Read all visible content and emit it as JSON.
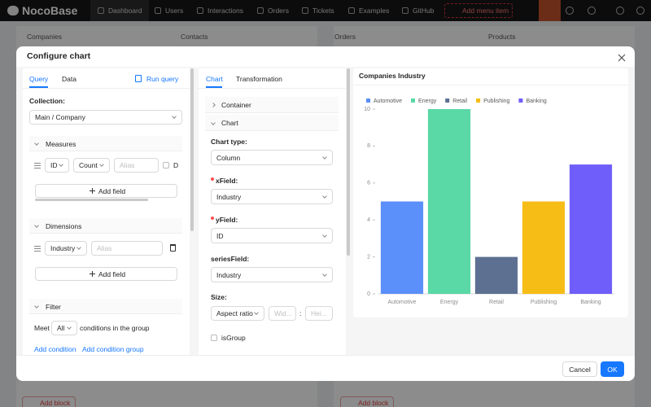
{
  "nav": {
    "logo": "NocoBase",
    "items": [
      "Dashboard",
      "Users",
      "Interactions",
      "Orders",
      "Tickets",
      "Examples",
      "GitHub"
    ],
    "add_menu_item": "Add menu item"
  },
  "background": {
    "columns": [
      "Companies",
      "Contacts",
      "Orders",
      "Products"
    ],
    "add_block": "Add block"
  },
  "modal": {
    "title": "Configure chart",
    "query": {
      "tabs": [
        "Query",
        "Data"
      ],
      "run_query": "Run query",
      "collection_label": "Collection:",
      "collection": "Main / Company",
      "measures": {
        "title": "Measures",
        "field": "ID",
        "aggregation": "Count",
        "alias_placeholder": "Alias",
        "distinct": "D",
        "add_field": "Add field"
      },
      "dimensions": {
        "title": "Dimensions",
        "field": "Industry",
        "alias_placeholder": "Alias",
        "add_field": "Add field"
      },
      "filter": {
        "title": "Filter",
        "meet": "Meet",
        "logic": "All",
        "conditions_text": "conditions in the group",
        "add_condition": "Add condition",
        "add_condition_group": "Add condition group"
      }
    },
    "config": {
      "tabs": [
        "Chart",
        "Transformation"
      ],
      "sections": [
        "Container",
        "Chart"
      ],
      "fields": [
        {
          "label": "Chart type:",
          "value": "Column"
        },
        {
          "label": "xField:",
          "value": "Industry",
          "required": true
        },
        {
          "label": "yField:",
          "value": "ID",
          "required": true
        },
        {
          "label": "seriesField:",
          "value": "Industry"
        }
      ],
      "size": {
        "label": "Size:",
        "mode": "Aspect ratio",
        "width_placeholder": "Wid...",
        "separator": ":",
        "height_placeholder": "Hei..."
      },
      "is_group": "isGroup"
    },
    "footer": {
      "cancel": "Cancel",
      "ok": "OK"
    }
  },
  "chart_data": {
    "type": "bar",
    "title": "Companies Industry",
    "categories": [
      "Automotive",
      "Energy",
      "Retail",
      "Publishing",
      "Banking"
    ],
    "values": [
      5,
      10,
      2,
      5,
      7
    ],
    "colors": [
      "#5b8ff9",
      "#5ad8a6",
      "#5d7092",
      "#f6bd16",
      "#6f5ef9"
    ],
    "ylim": [
      0,
      10
    ],
    "yticks": [
      0,
      2,
      4,
      6,
      8,
      10
    ],
    "legend": "top-left"
  }
}
